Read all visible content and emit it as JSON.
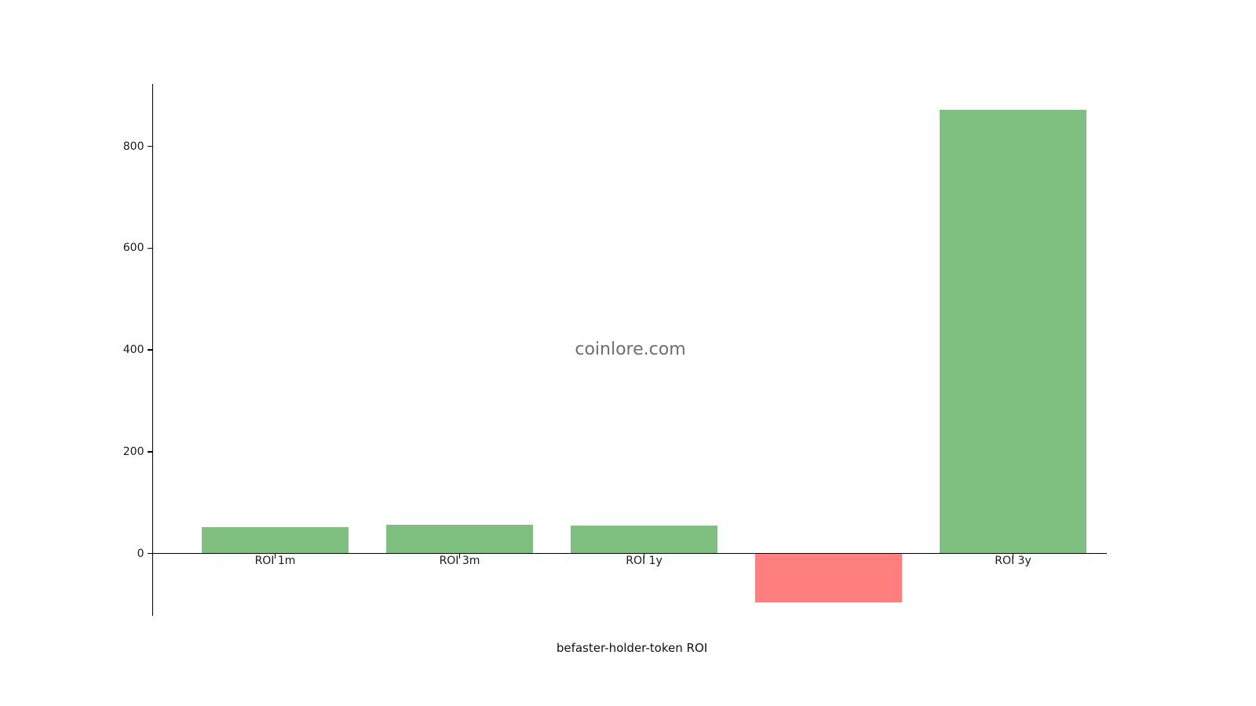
{
  "chart_data": {
    "type": "bar",
    "title": "befaster-holder-token ROI",
    "watermark": "coinlore.com",
    "categories": [
      "ROI 1m",
      "ROI 3m",
      "ROI 1y",
      "",
      "ROI 3y"
    ],
    "values": [
      51,
      57,
      54,
      -96,
      872
    ],
    "bar_colors": [
      "#7FBF7F",
      "#7FBF7F",
      "#7FBF7F",
      "#FF7F7F",
      "#7FBF7F"
    ],
    "positive_color": "#7FBF7F",
    "negative_color": "#FF7F7F",
    "yticks": [
      0,
      200,
      400,
      600,
      800
    ],
    "ylim": [
      -123,
      923
    ],
    "xlabel": "",
    "ylabel": "",
    "grid": false,
    "legend": "none",
    "axis_color": "#000000",
    "text_color": "#1a1a1a",
    "watermark_color": "#6e6e6e"
  }
}
